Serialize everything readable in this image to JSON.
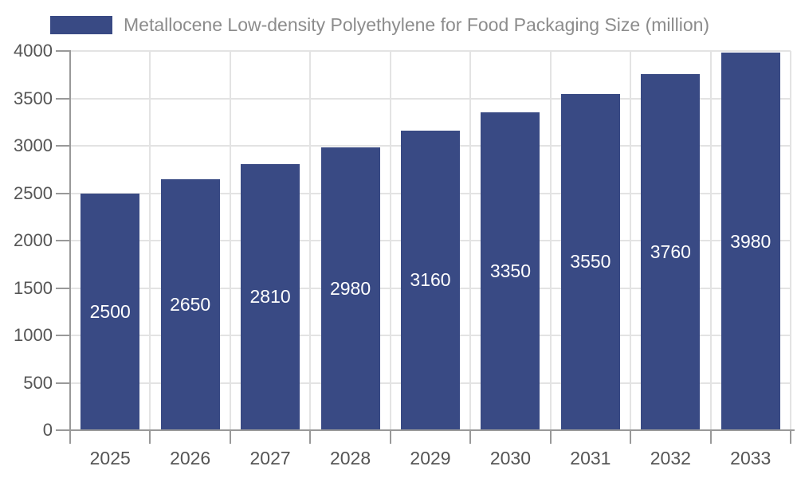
{
  "legend": {
    "label": "Metallocene Low-density Polyethylene for Food Packaging Size (million)"
  },
  "chart_data": {
    "type": "bar",
    "title": "",
    "xlabel": "",
    "ylabel": "",
    "categories": [
      "2025",
      "2026",
      "2027",
      "2028",
      "2029",
      "2030",
      "2031",
      "2032",
      "2033"
    ],
    "values": [
      2500,
      2650,
      2810,
      2980,
      3160,
      3350,
      3550,
      3760,
      3980
    ],
    "series_name": "Metallocene Low-density Polyethylene for Food Packaging Size (million)",
    "ylim": [
      0,
      4000
    ],
    "yticks": [
      0,
      500,
      1000,
      1500,
      2000,
      2500,
      3000,
      3500,
      4000
    ],
    "grid": true,
    "legend_position": "top",
    "value_labels_position": "inside-center"
  },
  "colors": {
    "bar": "#394A84",
    "legend_text": "#8C8C8C",
    "axis_label": "#555555",
    "gridline": "#E3E3E3",
    "axis_line": "#999999",
    "value_label": "#FFFFFF",
    "background": "#FFFFFF"
  }
}
